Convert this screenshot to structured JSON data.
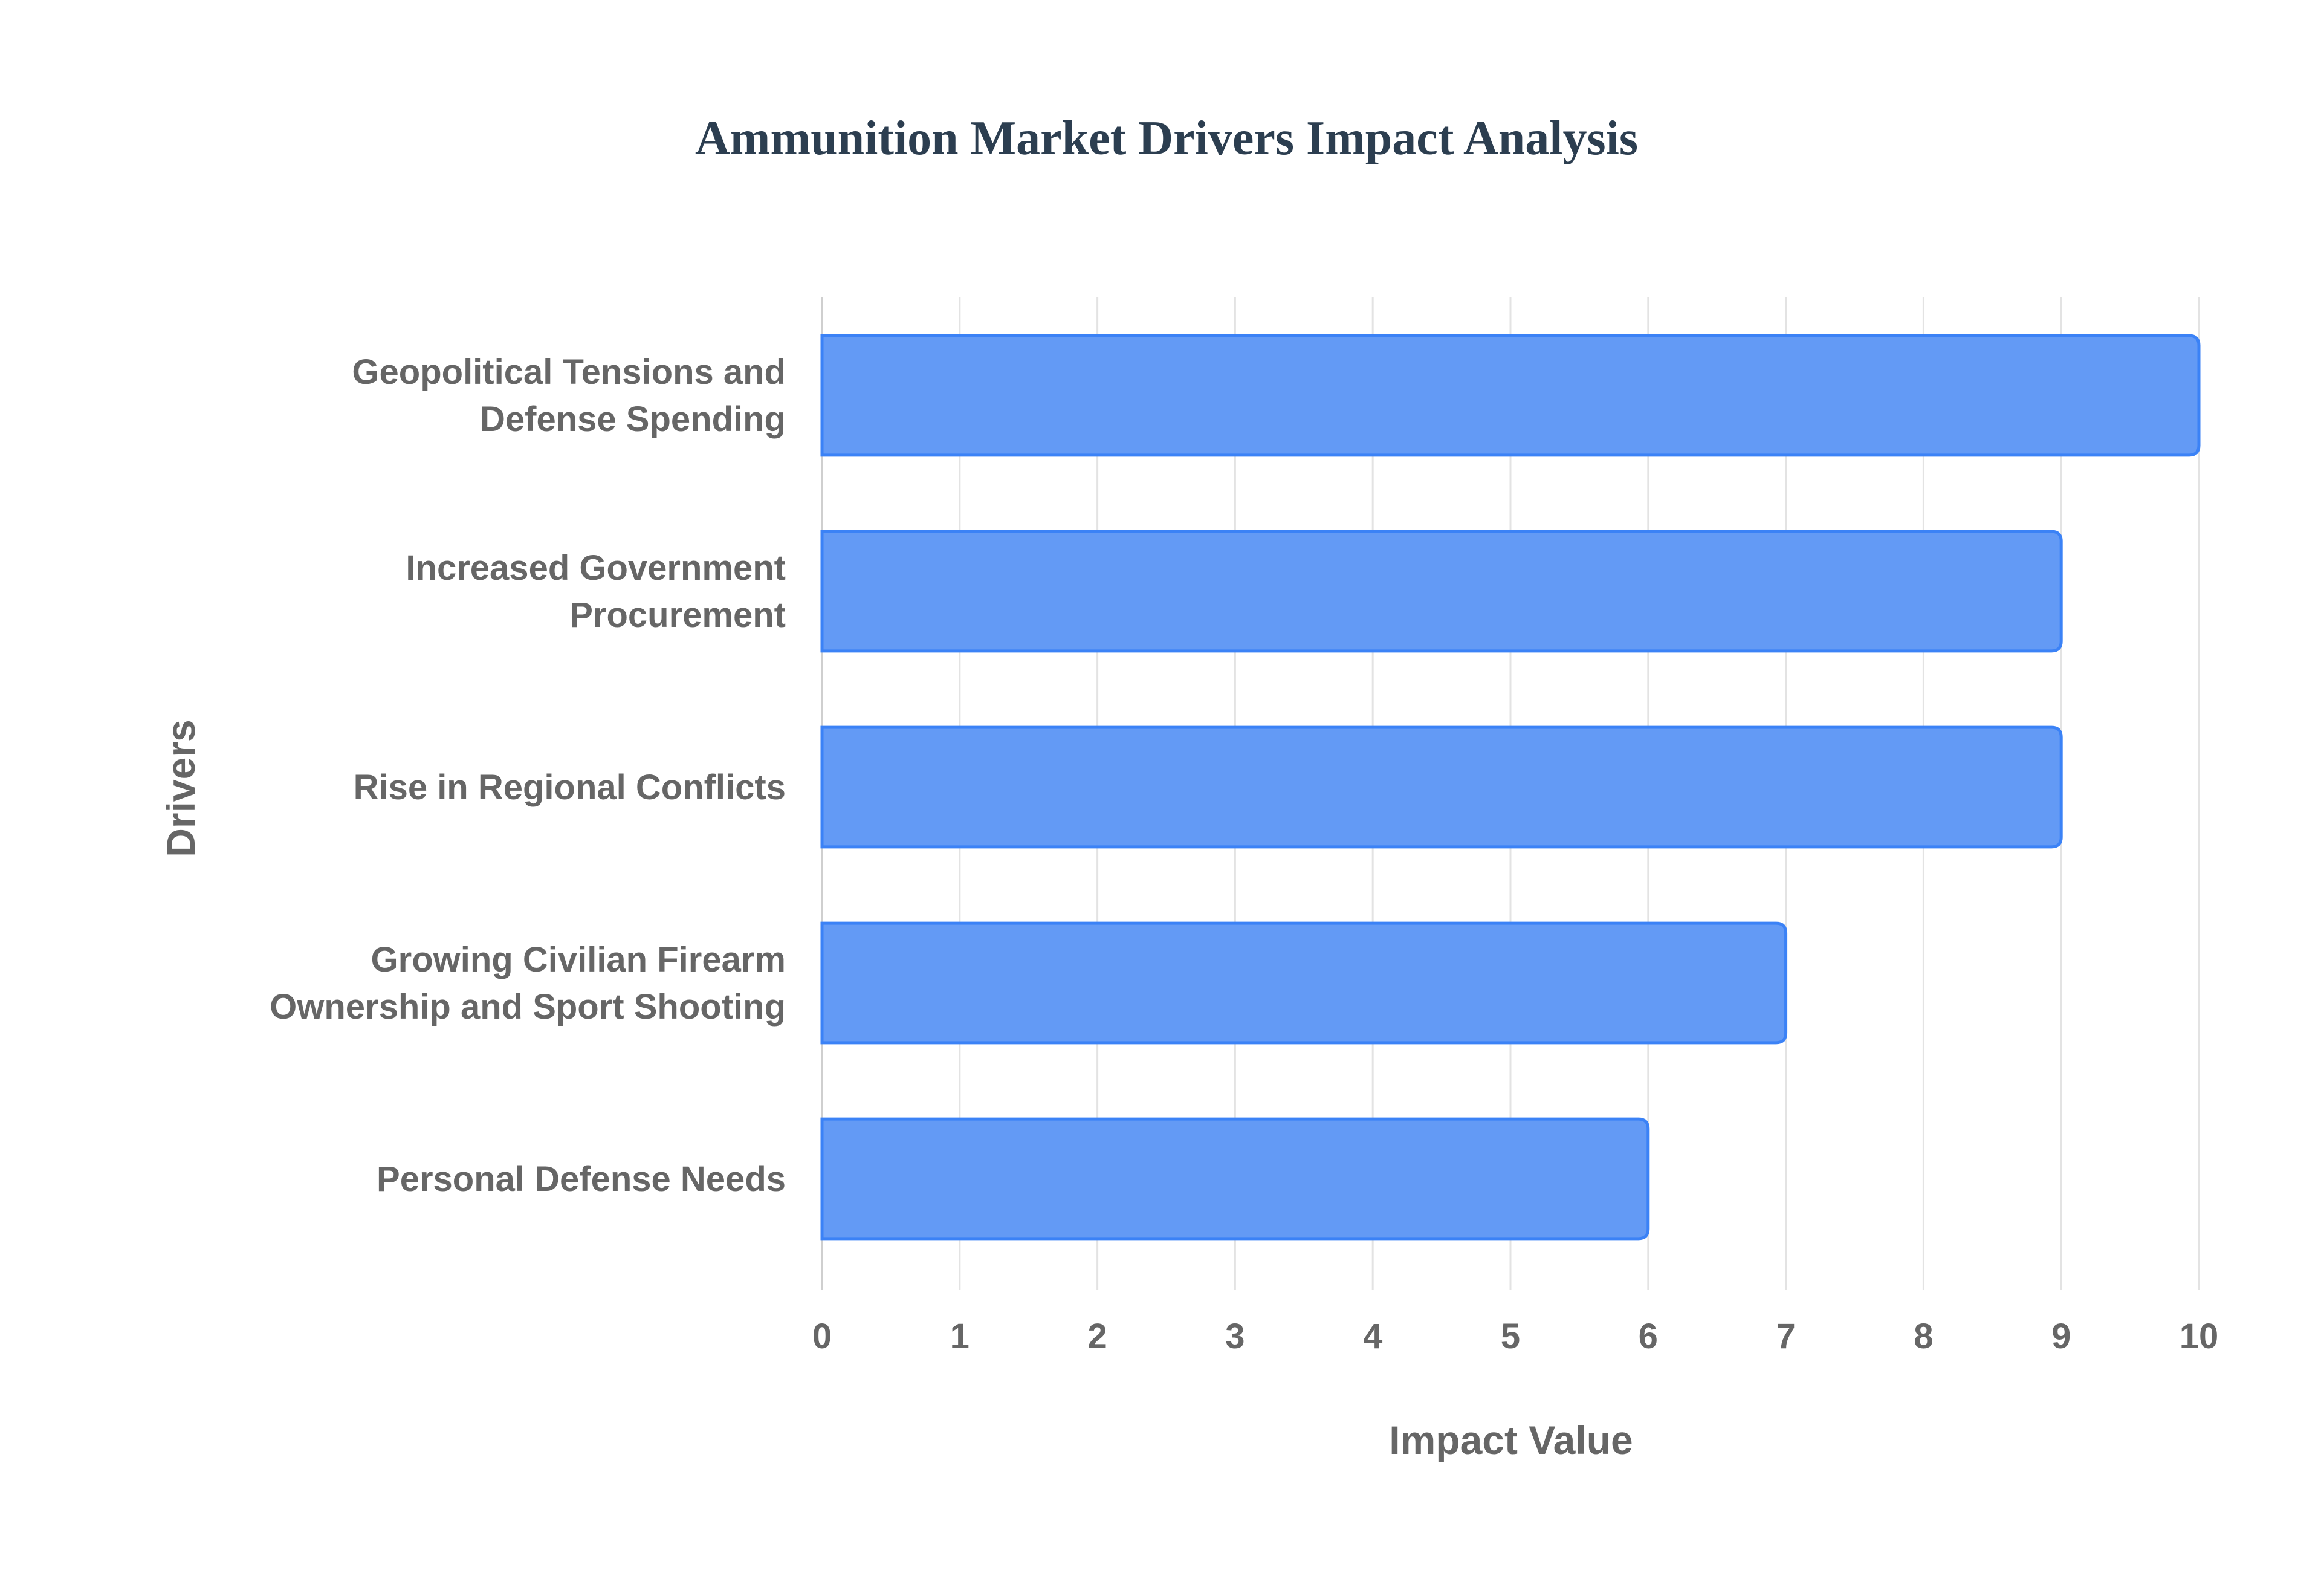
{
  "chart_data": {
    "type": "bar",
    "orientation": "horizontal",
    "title": "Ammunition Market Drivers Impact Analysis",
    "xlabel": "Impact Value",
    "ylabel": "Drivers",
    "categories": [
      [
        "Geopolitical Tensions and",
        "Defense Spending"
      ],
      [
        "Increased Government",
        "Procurement"
      ],
      [
        "Rise in Regional Conflicts"
      ],
      [
        "Growing Civilian Firearm",
        "Ownership and Sport Shooting"
      ],
      [
        "Personal Defense Needs"
      ]
    ],
    "values": [
      10,
      9,
      9,
      7,
      6
    ],
    "xlim": [
      0,
      10
    ],
    "xticks": [
      "0",
      "1",
      "2",
      "3",
      "4",
      "5",
      "6",
      "7",
      "8",
      "9",
      "10"
    ],
    "grid": true,
    "legend": "none",
    "colors": {
      "fill": "#639af5",
      "border": "#3b82f6",
      "grid": "#e3e3e3",
      "text": "#666666",
      "title": "#2c3e50"
    }
  }
}
